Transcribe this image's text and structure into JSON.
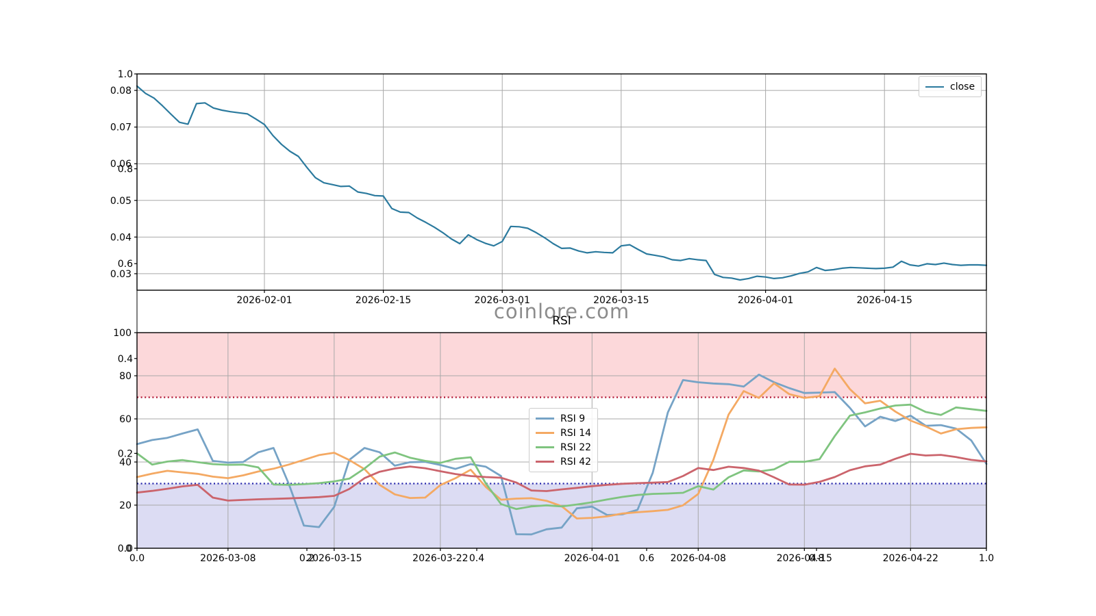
{
  "watermark": "coinlore.com",
  "overlay_axis": {
    "x_tick_labels": [
      "0.0",
      "0.2",
      "0.4",
      "0.6",
      "0.8",
      "1.0"
    ],
    "y_tick_labels": [
      "0.0",
      "0.2",
      "0.4",
      "0.6",
      "0.8",
      "1.0"
    ]
  },
  "chart_data": [
    {
      "type": "line",
      "name": "price-panel",
      "title": "",
      "grid": true,
      "legend_position": "upper right",
      "x_range": [
        "2026-01-17",
        "2026-04-27"
      ],
      "x_step_days": 1,
      "ylim": [
        0.0255,
        0.0845
      ],
      "y_ticks": [
        {
          "label": "0.08",
          "value": 0.08
        },
        {
          "label": "0.07",
          "value": 0.07
        },
        {
          "label": "0.06",
          "value": 0.06
        },
        {
          "label": "0.05",
          "value": 0.05
        },
        {
          "label": "0.04",
          "value": 0.04
        },
        {
          "label": "0.03",
          "value": 0.03
        }
      ],
      "x_ticks": [
        {
          "label": "2026-02-01",
          "index": 15
        },
        {
          "label": "2026-02-15",
          "index": 29
        },
        {
          "label": "2026-03-01",
          "index": 43
        },
        {
          "label": "2026-03-15",
          "index": 57
        },
        {
          "label": "2026-04-01",
          "index": 74
        },
        {
          "label": "2026-04-15",
          "index": 88
        }
      ],
      "series": [
        {
          "name": "close",
          "color": "#2b7a9e",
          "width": 2.2,
          "values": [
            0.0812,
            0.0792,
            0.0779,
            0.0758,
            0.0735,
            0.0713,
            0.0708,
            0.0764,
            0.0766,
            0.0752,
            0.0746,
            0.0742,
            0.0739,
            0.0736,
            0.0722,
            0.0707,
            0.0677,
            0.0653,
            0.0634,
            0.062,
            0.059,
            0.0562,
            0.0548,
            0.0543,
            0.0538,
            0.0539,
            0.0523,
            0.0519,
            0.0513,
            0.0512,
            0.0478,
            0.0468,
            0.0467,
            0.0452,
            0.044,
            0.0427,
            0.0412,
            0.0395,
            0.0382,
            0.0406,
            0.0393,
            0.0383,
            0.0376,
            0.0388,
            0.0429,
            0.0428,
            0.0424,
            0.0412,
            0.0398,
            0.0382,
            0.0369,
            0.037,
            0.0362,
            0.0357,
            0.036,
            0.0358,
            0.0357,
            0.0376,
            0.0379,
            0.0366,
            0.0354,
            0.035,
            0.0346,
            0.0338,
            0.0336,
            0.0341,
            0.0338,
            0.0336,
            0.0298,
            0.029,
            0.0288,
            0.0283,
            0.0287,
            0.0293,
            0.0291,
            0.0287,
            0.0289,
            0.0294,
            0.0301,
            0.0305,
            0.0317,
            0.0309,
            0.0311,
            0.0315,
            0.0317,
            0.0316,
            0.0315,
            0.0314,
            0.0315,
            0.0318,
            0.0334,
            0.0324,
            0.0321,
            0.0327,
            0.0325,
            0.0329,
            0.0325,
            0.0323,
            0.0324,
            0.0324,
            0.0323
          ]
        }
      ]
    },
    {
      "type": "line",
      "name": "rsi-panel",
      "title": "RSI",
      "grid": true,
      "legend_position": "center left inset",
      "x_range": [
        "2026-03-02",
        "2026-04-27"
      ],
      "x_step_days": 1,
      "ylim": [
        0,
        100
      ],
      "y_ticks": [
        {
          "label": "100",
          "value": 100
        },
        {
          "label": "80",
          "value": 80
        },
        {
          "label": "60",
          "value": 60
        },
        {
          "label": "40",
          "value": 40
        },
        {
          "label": "20",
          "value": 20
        },
        {
          "label": "0",
          "value": 0
        }
      ],
      "x_ticks": [
        {
          "label": "2026-03-08",
          "index": 6
        },
        {
          "label": "2026-03-15",
          "index": 13
        },
        {
          "label": "2026-03-22",
          "index": 20
        },
        {
          "label": "2026-04-01",
          "index": 30
        },
        {
          "label": "2026-04-08",
          "index": 37
        },
        {
          "label": "2026-04-15",
          "index": 44
        },
        {
          "label": "2026-04-22",
          "index": 51
        }
      ],
      "bands": [
        {
          "name": "overbought",
          "from": 70,
          "to": 100,
          "color": "#fcd8da"
        },
        {
          "name": "oversold",
          "from": 0,
          "to": 30,
          "color": "#dcdcf3"
        }
      ],
      "hlines": [
        {
          "value": 70,
          "color": "#b01030",
          "style": "dotted"
        },
        {
          "value": 30,
          "color": "#2222aa",
          "style": "dotted"
        }
      ],
      "series": [
        {
          "name": "RSI 9",
          "color": "#76a3c6",
          "width": 2.8,
          "values": [
            48.3,
            50.2,
            51.2,
            53.2,
            55.1,
            40.5,
            39.7,
            40.0,
            44.5,
            46.5,
            30.0,
            10.5,
            9.8,
            19.2,
            41.0,
            46.5,
            44.5,
            38.3,
            39.9,
            40.1,
            38.6,
            36.8,
            39.0,
            37.8,
            33.5,
            6.5,
            6.4,
            8.8,
            9.6,
            18.5,
            19.3,
            15.4,
            15.7,
            17.8,
            35.0,
            63.0,
            78.0,
            77.0,
            76.4,
            76.1,
            75.0,
            80.5,
            77.0,
            74.3,
            72.0,
            72.2,
            72.4,
            65.1,
            56.5,
            61.0,
            59.0,
            61.5,
            56.8,
            57.1,
            55.5,
            50.0,
            39.1
          ]
        },
        {
          "name": "RSI 14",
          "color": "#f4a963",
          "width": 2.8,
          "values": [
            33.0,
            34.6,
            35.9,
            35.2,
            34.5,
            33.2,
            32.5,
            33.8,
            35.6,
            36.9,
            38.8,
            41.0,
            43.2,
            44.3,
            40.9,
            36.7,
            29.4,
            25.0,
            23.3,
            23.5,
            29.3,
            32.5,
            36.4,
            28.4,
            22.5,
            23.0,
            23.2,
            22.0,
            19.5,
            13.8,
            14.1,
            14.8,
            16.1,
            16.7,
            17.2,
            17.8,
            19.9,
            25.2,
            41.0,
            62.0,
            72.9,
            69.7,
            76.5,
            71.5,
            69.7,
            70.5,
            83.3,
            73.8,
            67.2,
            68.4,
            63.4,
            59.2,
            56.5,
            53.2,
            55.2,
            55.8,
            56.1
          ]
        },
        {
          "name": "RSI 22",
          "color": "#7fc47f",
          "width": 2.8,
          "values": [
            44.0,
            38.8,
            40.2,
            40.9,
            39.9,
            39.0,
            38.7,
            38.8,
            37.5,
            29.6,
            29.4,
            29.7,
            30.2,
            31.0,
            32.3,
            37.0,
            42.5,
            44.4,
            42.0,
            40.5,
            39.6,
            41.5,
            42.2,
            30.0,
            20.5,
            18.2,
            19.4,
            19.9,
            19.4,
            20.3,
            21.3,
            22.6,
            23.8,
            24.7,
            25.2,
            25.4,
            25.7,
            28.8,
            27.2,
            32.9,
            36.1,
            35.6,
            36.6,
            40.1,
            40.1,
            41.3,
            52.0,
            61.5,
            63.0,
            64.8,
            66.2,
            66.6,
            63.2,
            61.8,
            65.3,
            64.5,
            63.7
          ]
        },
        {
          "name": "RSI 42",
          "color": "#cb646c",
          "width": 2.8,
          "values": [
            25.8,
            26.6,
            27.6,
            28.7,
            29.4,
            23.5,
            22.1,
            22.4,
            22.7,
            22.9,
            23.1,
            23.4,
            23.7,
            24.3,
            27.5,
            32.5,
            35.5,
            37.0,
            37.9,
            37.1,
            35.7,
            34.4,
            33.5,
            33.0,
            32.7,
            30.5,
            26.8,
            26.5,
            27.3,
            28.0,
            28.8,
            29.4,
            29.9,
            30.2,
            30.4,
            30.7,
            33.5,
            37.2,
            36.3,
            37.8,
            37.2,
            36.0,
            32.9,
            29.6,
            29.5,
            30.8,
            33.0,
            36.2,
            38.0,
            38.8,
            41.5,
            43.8,
            43.0,
            43.3,
            42.3,
            41.0,
            40.3
          ]
        }
      ]
    }
  ]
}
